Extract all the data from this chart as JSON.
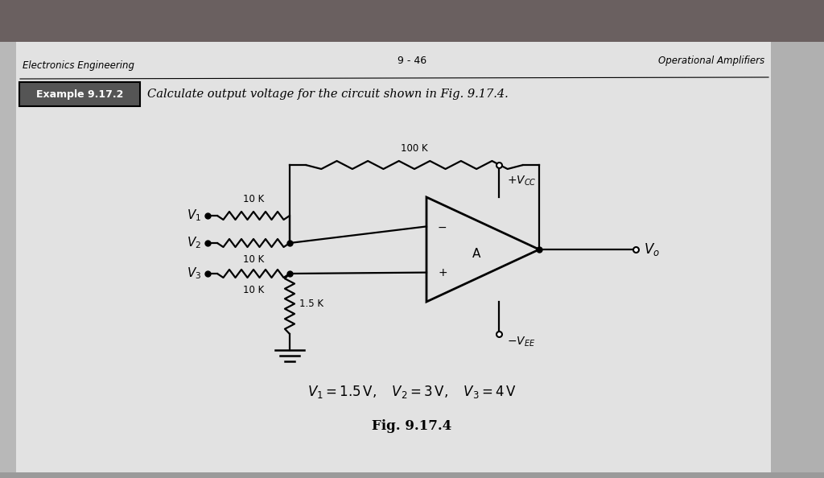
{
  "bg_top_color": "#8a8a8a",
  "page_color": "#d8d8d8",
  "header_left": "Electronics Engineering",
  "header_center": "9 - 46",
  "header_right": "Operational Amplifiers",
  "example_label": "Example 9.17.2",
  "example_text": "Calculate output voltage for the circuit shown in Fig. 9.17.4.",
  "fig_caption": "Fig. 9.17.4",
  "r1_label": "10 K",
  "r2_label": "10 K",
  "r3_label": "10 K",
  "rf_label": "100 K",
  "rg_label": "1.5 K",
  "amp_label": "A"
}
